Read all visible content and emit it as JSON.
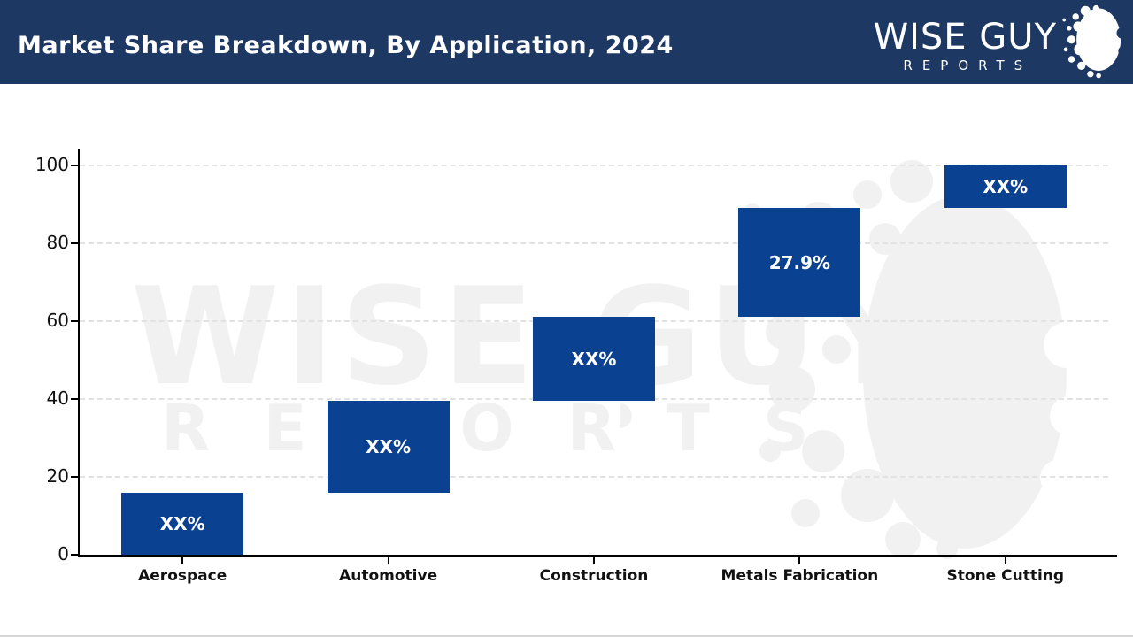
{
  "header": {
    "title": "Market Share Breakdown, By Application, 2024",
    "logo": {
      "line1": "WISE GUY",
      "line2": "REPORTS"
    }
  },
  "watermark": {
    "line1": "WISE GUY",
    "line2": "REPORTS"
  },
  "chart_data": {
    "type": "bar",
    "subtype": "floating-waterfall",
    "title": "Market Share Breakdown, By Application, 2024",
    "xlabel": "",
    "ylabel": "",
    "categories": [
      "Aerospace",
      "Automotive",
      "Construction",
      "Metals Fabrication",
      "Stone Cutting"
    ],
    "segments": [
      {
        "category": "Aerospace",
        "start": 0,
        "end": 16,
        "label": "XX%"
      },
      {
        "category": "Automotive",
        "start": 16,
        "end": 39.5,
        "label": "XX%"
      },
      {
        "category": "Construction",
        "start": 39.5,
        "end": 61.1,
        "label": "XX%"
      },
      {
        "category": "Metals Fabrication",
        "start": 61.1,
        "end": 89,
        "label": "27.9%"
      },
      {
        "category": "Stone Cutting",
        "start": 89,
        "end": 100,
        "label": "XX%"
      }
    ],
    "values_masked": [
      "XX%",
      "XX%",
      "XX%",
      "27.9%",
      "XX%"
    ],
    "yticks": [
      0,
      20,
      40,
      60,
      80,
      100
    ],
    "ylim": [
      0,
      104
    ],
    "grid": "dashed-horizontal",
    "legend": "none"
  },
  "colors": {
    "header_bg": "#1e3864",
    "bar": "#0b4191",
    "bar_label": "#ffffff",
    "grid": "#e2e2e2",
    "axis": "#000000",
    "watermark": "#f1f1f1"
  }
}
